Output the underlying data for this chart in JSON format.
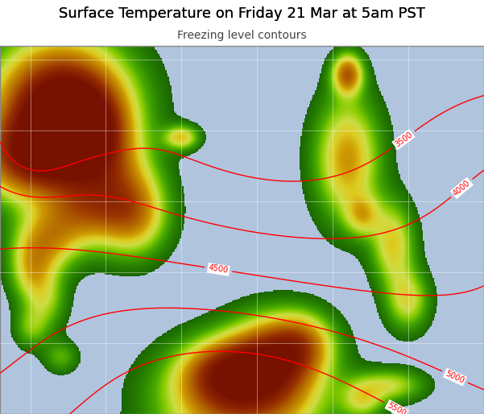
{
  "title": "Surface Temperature on Friday 21 Mar at 5am PST",
  "subtitle": "Freezing level contours",
  "title_fontsize": 13,
  "subtitle_fontsize": 10,
  "background_color": "#ffffff",
  "ocean_color": "#b0c4de",
  "border_color": "#c8c8c8",
  "map_extent": [
    98,
    130,
    0,
    26
  ],
  "figsize": [
    6.01,
    5.14
  ],
  "dpi": 100
}
